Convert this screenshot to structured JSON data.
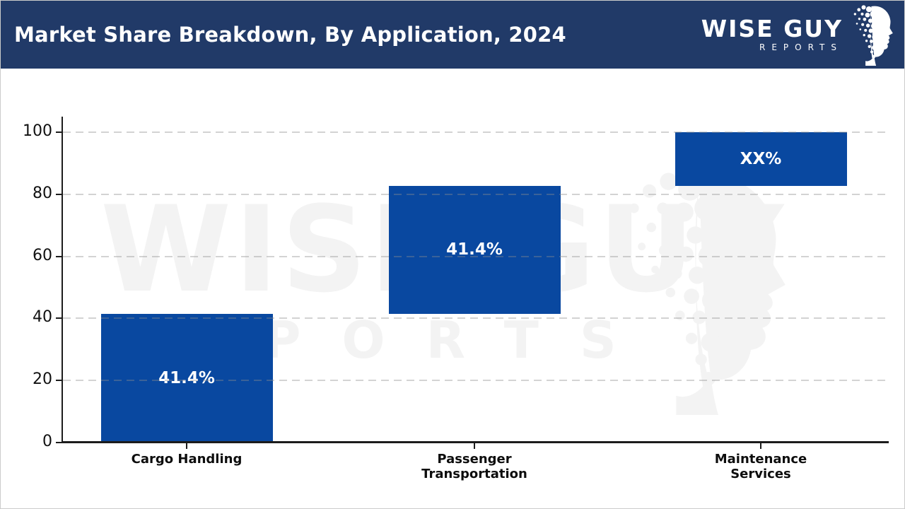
{
  "header": {
    "title": "Market Share Breakdown, By Application, 2024",
    "logo": {
      "line1": "WISE GUY",
      "line2": "REPORTS"
    }
  },
  "watermark": {
    "line1": "WISE GUY",
    "line2": "REPORTS"
  },
  "chart_data": {
    "type": "bar",
    "subtype": "floating-segment (waterfall-style market share breakdown)",
    "title": "Market Share Breakdown, By Application, 2024",
    "categories": [
      "Cargo Handling",
      "Passenger Transportation",
      "Maintenance Services"
    ],
    "category_lines": [
      [
        "Cargo Handling"
      ],
      [
        "Passenger",
        "Transportation"
      ],
      [
        "Maintenance",
        "Services"
      ]
    ],
    "segments": [
      {
        "category": "Cargo Handling",
        "start": 0,
        "end": 41.4,
        "label": "41.4%"
      },
      {
        "category": "Passenger Transportation",
        "start": 41.4,
        "end": 82.8,
        "label": "41.4%"
      },
      {
        "category": "Maintenance Services",
        "start": 82.8,
        "end": 100,
        "label": "XX%"
      }
    ],
    "xlabel": "",
    "ylabel": "",
    "ylim": [
      0,
      100
    ],
    "yticks": [
      0,
      20,
      40,
      60,
      80,
      100
    ],
    "grid": "horizontal dashed, drawn over bars",
    "legend": "none",
    "bar_color": "#0948a0",
    "label_color": "#ffffff"
  },
  "colors": {
    "header_bg": "#213a68",
    "bar": "#0948a0",
    "gridline": "#d9d9d9",
    "axis": "#1c1c1c",
    "watermark": "#f3f3f3",
    "page_border": "#cbcbcb"
  }
}
